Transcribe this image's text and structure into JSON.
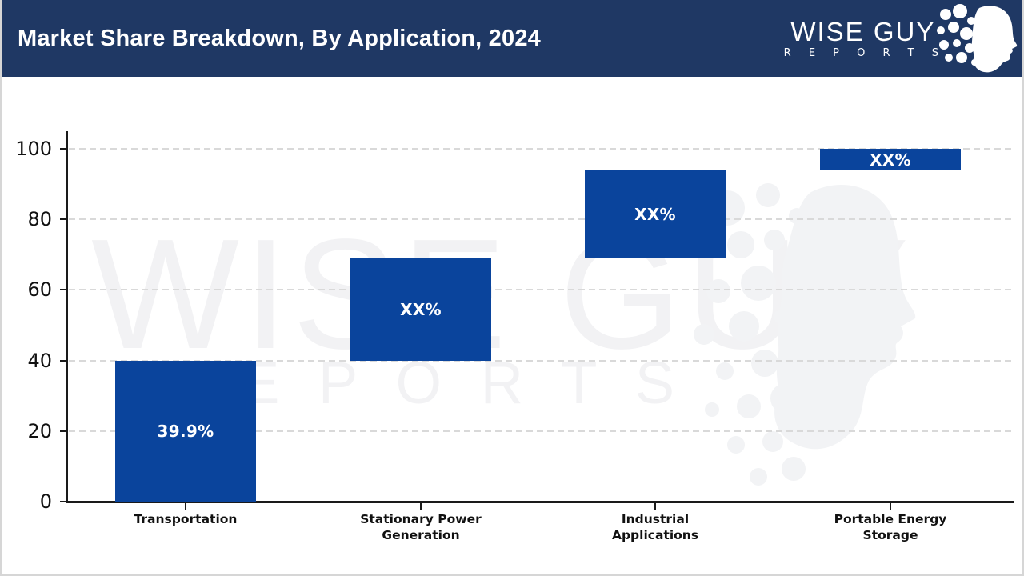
{
  "header": {
    "title": "Market Share Breakdown, By Application, 2024",
    "logo": {
      "brand": "WISE GUY",
      "sub": "R E P O R T S"
    }
  },
  "watermark": {
    "brand": "WISE GUY",
    "sub": "R E P O R T S"
  },
  "colors": {
    "header_bg": "#1f3864",
    "bar": "#0a449c",
    "grid": "#d9d9d9",
    "axis": "#1a1a1a",
    "watermark": "#f2f2f4"
  },
  "chart_data": {
    "type": "bar",
    "subtype": "floating-waterfall",
    "title": "Market Share Breakdown, By Application, 2024",
    "xlabel": "",
    "ylabel": "",
    "ylim": [
      0,
      100
    ],
    "yticks": [
      0,
      20,
      40,
      60,
      80,
      100
    ],
    "grid": "horizontal-dashed",
    "legend": "none",
    "categories": [
      "Transportation",
      "Stationary Power Generation",
      "Industrial Applications",
      "Portable Energy Storage"
    ],
    "segments": [
      {
        "category": "Transportation",
        "from": 0,
        "to": 39.9,
        "label": "39.9%"
      },
      {
        "category": "Stationary Power Generation",
        "from": 39.9,
        "to": 69.0,
        "label": "XX%"
      },
      {
        "category": "Industrial Applications",
        "from": 69.0,
        "to": 93.8,
        "label": "XX%"
      },
      {
        "category": "Portable Energy Storage",
        "from": 93.8,
        "to": 100,
        "label": "XX%"
      }
    ]
  }
}
